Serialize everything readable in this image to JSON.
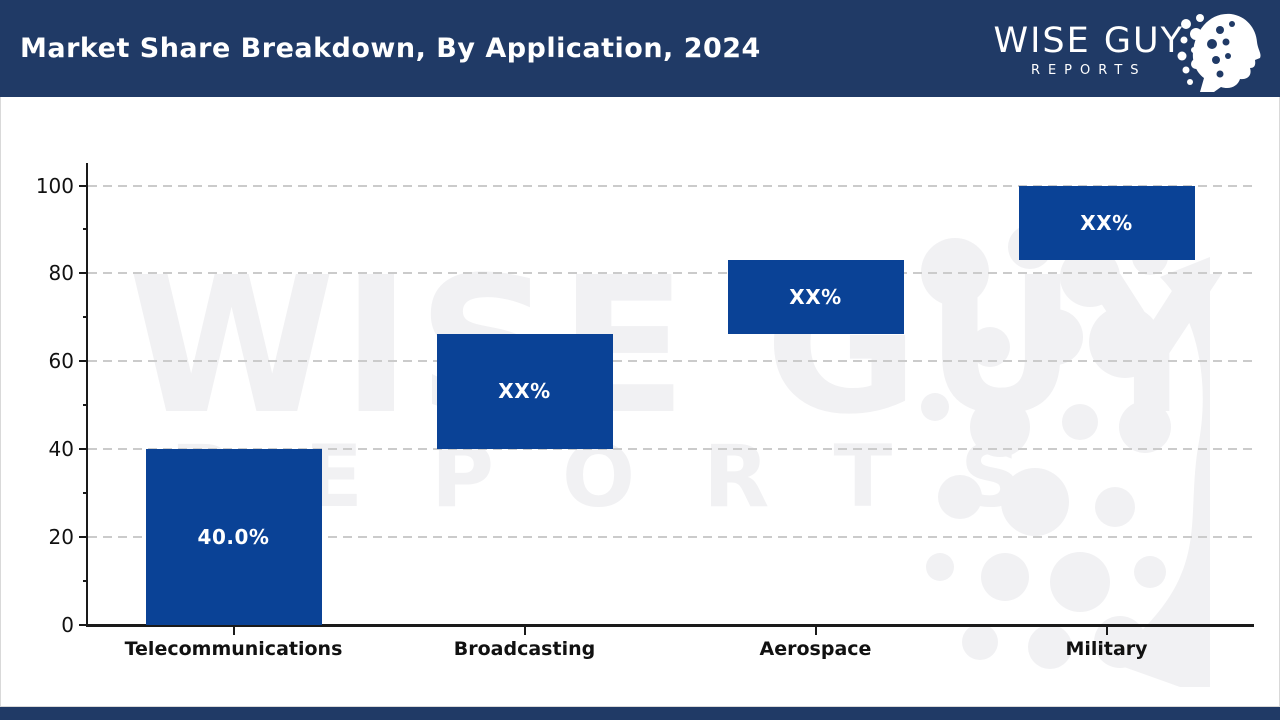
{
  "header": {
    "title": "Market Share Breakdown, By Application, 2024",
    "bg_color": "#203a66"
  },
  "logo": {
    "line1": "WISE GUY",
    "line2": "REPORTS"
  },
  "watermark": {
    "line1": "WISE GUY",
    "line2": "REPORTS"
  },
  "chart_data": {
    "type": "bar",
    "subtype": "waterfall",
    "title": "Market Share Breakdown, By Application, 2024",
    "xlabel": "",
    "ylabel": "",
    "categories": [
      "Telecommunications",
      "Broadcasting",
      "Aerospace",
      "Military"
    ],
    "segments": [
      {
        "category": "Telecommunications",
        "start": 0,
        "end": 40,
        "value": 40.0,
        "label": "40.0%"
      },
      {
        "category": "Broadcasting",
        "start": 40,
        "end": 66.3,
        "value": 26.3,
        "label": "XX%"
      },
      {
        "category": "Aerospace",
        "start": 66.3,
        "end": 83,
        "value": 16.7,
        "label": "XX%"
      },
      {
        "category": "Military",
        "start": 83,
        "end": 100,
        "value": 17.0,
        "label": "XX%"
      }
    ],
    "yticks": [
      0,
      20,
      40,
      60,
      80,
      100
    ],
    "ylim": [
      0,
      105
    ],
    "grid": "horizontal-dashed",
    "bar_color": "#0a4296",
    "bar_label_color": "#ffffff",
    "gridline_color": "#cbcbcb",
    "axis_color": "#1a1a1a",
    "legend": "none"
  }
}
